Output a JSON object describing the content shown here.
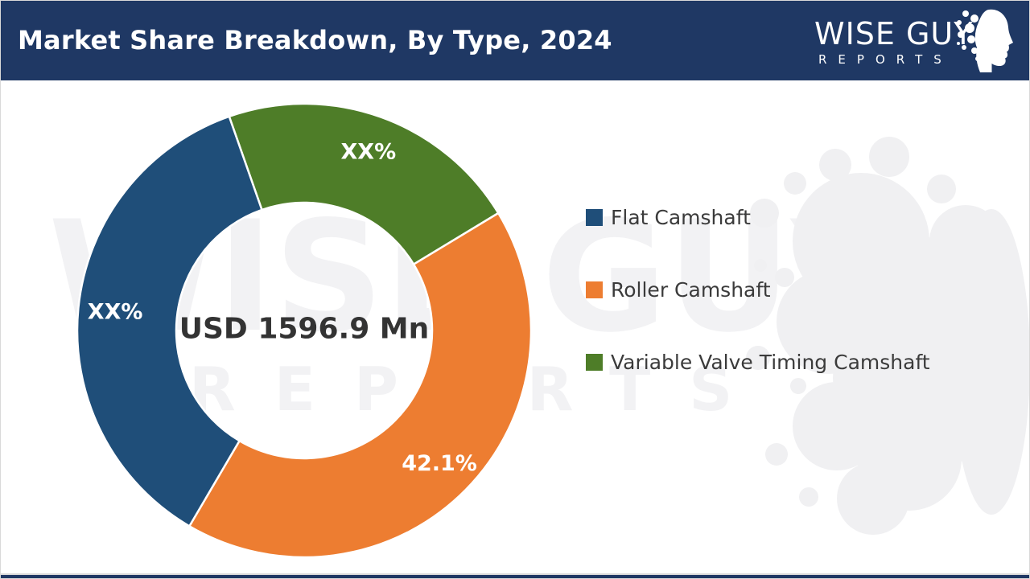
{
  "header": {
    "title": "Market Share Breakdown, By Type, 2024",
    "logo": {
      "brand_top": "WISE GUY",
      "brand_bottom": "REPORTS"
    }
  },
  "watermark": {
    "text_top": "WISE GUY",
    "text_bottom": "REPORTS"
  },
  "chart_data": {
    "type": "pie",
    "variant": "donut",
    "title": "Market Share Breakdown, By Type, 2024",
    "center_label": "USD 1596.9 Mn",
    "start_angle_deg": -19.3,
    "legend_position": "right",
    "segments": [
      {
        "name": "Variable Valve Timing Camshaft",
        "value_pct": 21.7,
        "display_label": "XX%",
        "color": "#4e7d28"
      },
      {
        "name": "Roller Camshaft",
        "value_pct": 42.1,
        "display_label": "42.1%",
        "color": "#ed7d31"
      },
      {
        "name": "Flat Camshaft",
        "value_pct": 36.2,
        "display_label": "XX%",
        "color": "#1f4e79"
      }
    ]
  },
  "legend": {
    "items": [
      {
        "label": "Flat Camshaft",
        "color": "#1f4e79"
      },
      {
        "label": "Roller Camshaft",
        "color": "#ed7d31"
      },
      {
        "label": "Variable Valve Timing Camshaft",
        "color": "#4e7d28"
      }
    ]
  },
  "colors": {
    "header_bg": "#1f3864",
    "footer_bar": "#1f3864",
    "segment_label_text": "#ffffff",
    "center_text": "#333333",
    "legend_text": "#3b3b3b",
    "watermark": "#f2f2f4"
  }
}
